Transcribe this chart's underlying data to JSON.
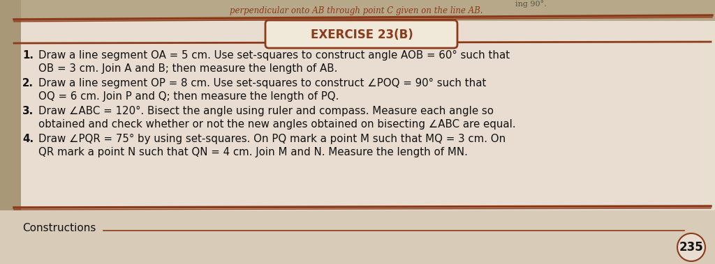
{
  "bg_top": "#c8b8a0",
  "bg_mid": "#e8dfd0",
  "bg_bottom": "#ddd0bc",
  "top_text": "perpendicular onto AB through point C given on the line AB.",
  "top_right_text": "ing 90°.",
  "exercise_title": "EXERCISE 23(B)",
  "items": [
    {
      "num": "1.",
      "line1": "Draw a line segment OA = 5 cm. Use set-squares to construct angle AOB = 60° such that",
      "line2": "OB = 3 cm. Join A and B; then measure the length of AB."
    },
    {
      "num": "2.",
      "line1": "Draw a line segment OP = 8 cm. Use set-squares to construct ∠POQ = 90° such that",
      "line2": "OQ = 6 cm. Join P and Q; then measure the length of PQ."
    },
    {
      "num": "3.",
      "line1": "Draw ∠ABC = 120°. Bisect the angle using ruler and compass. Measure each angle so",
      "line2": "obtained and check whether or not the new angles obtained on bisecting ∠ABC are equal."
    },
    {
      "num": "4.",
      "line1": "Draw ∠PQR = 75° by using set-squares. On PQ mark a point M such that MQ = 3 cm. On",
      "line2": "QR mark a point N such that QN = 4 cm. Join M and N. Measure the length of MN."
    }
  ],
  "bottom_left": "Constructions",
  "bottom_right": "235",
  "border_color": "#8b3a1a",
  "text_color": "#111111",
  "num_color": "#111111"
}
